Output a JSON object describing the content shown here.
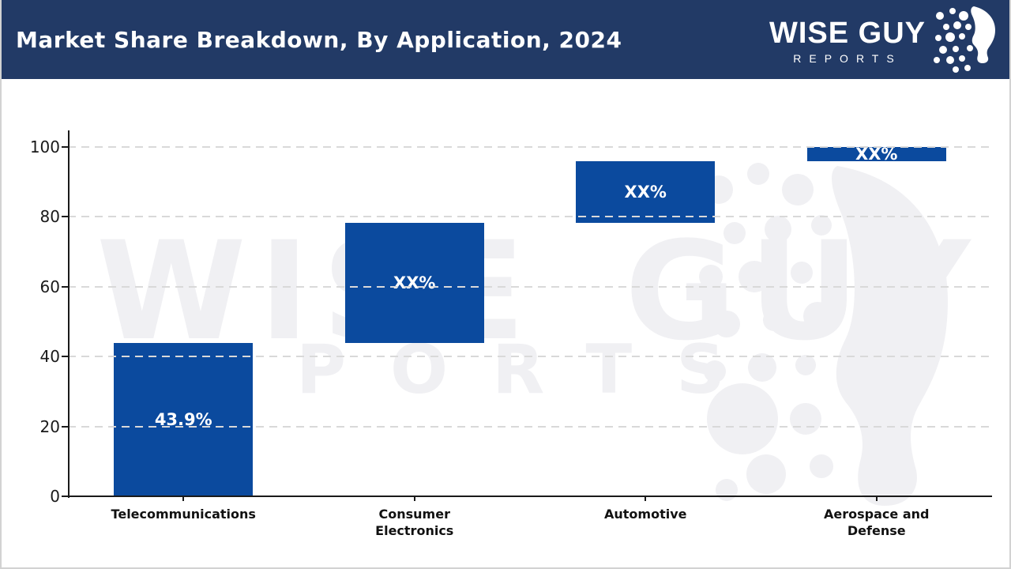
{
  "header": {
    "title": "Market Share Breakdown, By Application, 2024",
    "logo": {
      "line1": "WISE GUY",
      "line2": "REPORTS"
    }
  },
  "watermark": {
    "line1": "WISE GUY",
    "line2": "REPORTS"
  },
  "colors": {
    "header_bg": "#223A66",
    "bar": "#0B4A9E",
    "ghost_label": "#16386F",
    "bar_label": "#FFFFFF",
    "grid": "#D9D9D9",
    "axis": "#1A1A1A",
    "watermark": "#F0F0F3"
  },
  "chart_data": {
    "type": "bar",
    "variant": "waterfall",
    "title": "Market Share Breakdown, By Application, 2024",
    "categories": [
      "Telecommunications",
      "Consumer Electronics",
      "Automotive",
      "Aerospace and Defense"
    ],
    "category_display_lines": [
      [
        "Telecommunications"
      ],
      [
        "Consumer",
        "Electronics"
      ],
      [
        "Automotive"
      ],
      [
        "Aerospace and",
        "Defense"
      ]
    ],
    "bars": [
      {
        "category": "Telecommunications",
        "start": 0,
        "end": 43.9,
        "value": 43.9,
        "value_label": "43.9%"
      },
      {
        "category": "Consumer Electronics",
        "start": 43.9,
        "end": 78.2,
        "value": 34.3,
        "value_label": "XX%"
      },
      {
        "category": "Automotive",
        "start": 78.2,
        "end": 95.9,
        "value": 17.7,
        "value_label": "XX%"
      },
      {
        "category": "Aerospace and Defense",
        "start": 95.9,
        "end": 100,
        "value": 4.1,
        "value_label": "XX%"
      }
    ],
    "yticks": [
      0,
      20,
      40,
      60,
      80,
      100
    ],
    "ylim": [
      0,
      105
    ],
    "xlabel": "",
    "ylabel": "",
    "grid": "horizontal-dashed",
    "legend": "none"
  }
}
